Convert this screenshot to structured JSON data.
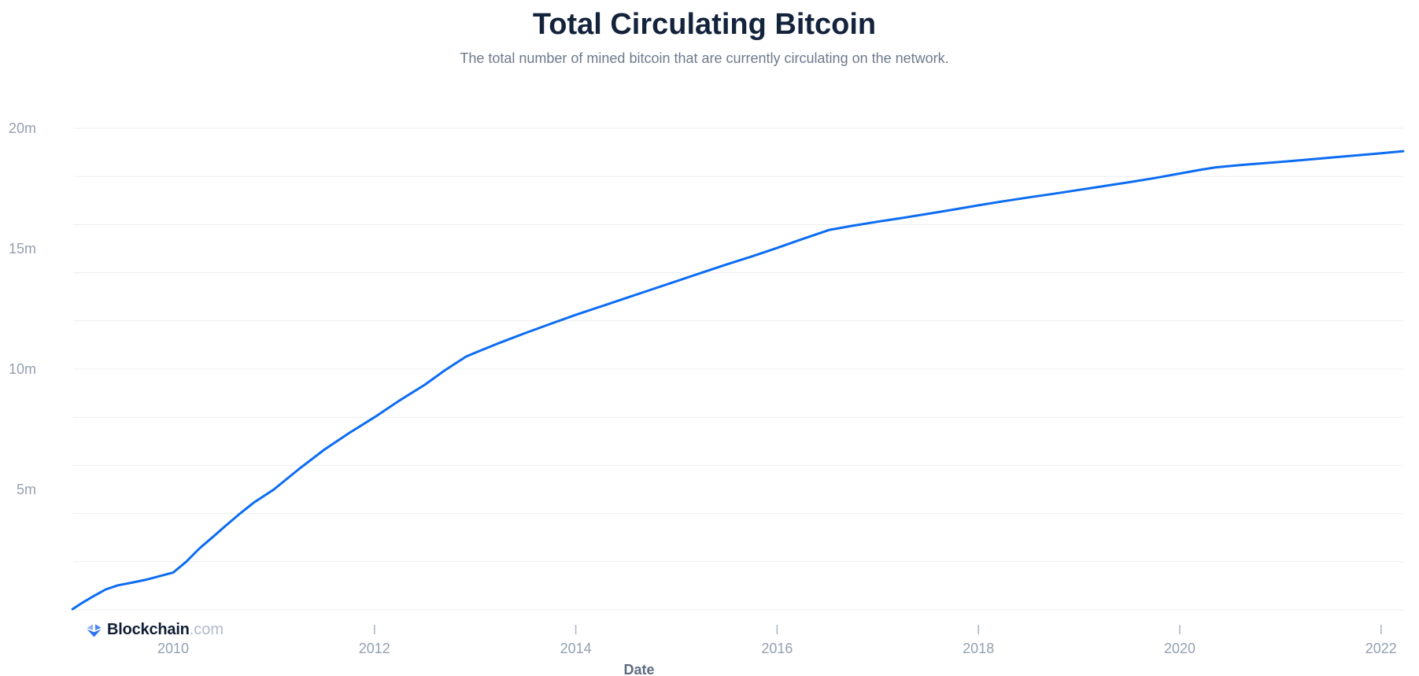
{
  "header": {
    "title": "Total Circulating Bitcoin",
    "subtitle": "The total number of mined bitcoin that are currently circulating on the network."
  },
  "footer": {
    "brand": "Blockchain",
    "domain": ".com"
  },
  "colors": {
    "line": "#0c6cf2",
    "grid": "#ebedf1",
    "axis_label": "#95a0b0",
    "axis_title": "#5f6b80",
    "tick": "#aab3c1",
    "title": "#14233c",
    "subtitle": "#6e7a8c",
    "logo_brand": "#101d33",
    "logo_domain": "#b2bac9",
    "logo_icon": [
      "#8fb0f9",
      "#4a85f6",
      "#2d72f5"
    ]
  },
  "chart_data": {
    "type": "line",
    "title": "Total Circulating Bitcoin",
    "subtitle": "The total number of mined bitcoin that are currently circulating on the network.",
    "xlabel": "Date",
    "ylabel": "",
    "unit": "millions of BTC",
    "x_range": [
      2009.0,
      2022.25
    ],
    "y_range": [
      0,
      20
    ],
    "grid": "horizontal-only",
    "legend": "none",
    "yaxis": {
      "gridline_values": [
        0,
        2,
        4,
        6,
        8,
        10,
        12,
        14,
        16,
        18,
        20
      ],
      "labels": [
        {
          "value": 20,
          "label": "20m"
        },
        {
          "value": 15,
          "label": "15m"
        },
        {
          "value": 10,
          "label": "10m"
        },
        {
          "value": 5,
          "label": "5m"
        }
      ]
    },
    "xaxis": {
      "ticks": [
        {
          "year": 2010,
          "label": "2010",
          "tick": false
        },
        {
          "year": 2012,
          "label": "2012",
          "tick": true
        },
        {
          "year": 2014,
          "label": "2014",
          "tick": true
        },
        {
          "year": 2016,
          "label": "2016",
          "tick": true
        },
        {
          "year": 2018,
          "label": "2018",
          "tick": true
        },
        {
          "year": 2020,
          "label": "2020",
          "tick": true
        },
        {
          "year": 2022,
          "label": "2022",
          "tick": true
        }
      ]
    },
    "series": [
      {
        "name": "Total Circulating Bitcoin",
        "color": "#0c6cf2",
        "points": [
          [
            2009.0,
            0.03
          ],
          [
            2009.1,
            0.3
          ],
          [
            2009.2,
            0.55
          ],
          [
            2009.33,
            0.85
          ],
          [
            2009.45,
            1.02
          ],
          [
            2009.6,
            1.14
          ],
          [
            2009.75,
            1.27
          ],
          [
            2009.9,
            1.44
          ],
          [
            2010.0,
            1.55
          ],
          [
            2010.13,
            2.0
          ],
          [
            2010.26,
            2.55
          ],
          [
            2010.4,
            3.05
          ],
          [
            2010.51,
            3.45
          ],
          [
            2010.65,
            3.95
          ],
          [
            2010.8,
            4.45
          ],
          [
            2011.0,
            5.0
          ],
          [
            2011.25,
            5.85
          ],
          [
            2011.5,
            6.65
          ],
          [
            2011.75,
            7.35
          ],
          [
            2012.0,
            8.0
          ],
          [
            2012.25,
            8.7
          ],
          [
            2012.5,
            9.35
          ],
          [
            2012.7,
            9.95
          ],
          [
            2012.91,
            10.52
          ],
          [
            2013.0,
            10.68
          ],
          [
            2013.25,
            11.1
          ],
          [
            2013.5,
            11.5
          ],
          [
            2013.75,
            11.88
          ],
          [
            2014.0,
            12.25
          ],
          [
            2014.25,
            12.6
          ],
          [
            2014.5,
            12.95
          ],
          [
            2014.75,
            13.3
          ],
          [
            2015.0,
            13.65
          ],
          [
            2015.25,
            14.0
          ],
          [
            2015.5,
            14.35
          ],
          [
            2015.75,
            14.68
          ],
          [
            2016.0,
            15.03
          ],
          [
            2016.25,
            15.4
          ],
          [
            2016.52,
            15.78
          ],
          [
            2016.75,
            15.95
          ],
          [
            2017.0,
            16.12
          ],
          [
            2017.25,
            16.28
          ],
          [
            2017.5,
            16.45
          ],
          [
            2017.75,
            16.62
          ],
          [
            2018.0,
            16.8
          ],
          [
            2018.25,
            16.97
          ],
          [
            2018.5,
            17.13
          ],
          [
            2018.75,
            17.28
          ],
          [
            2019.0,
            17.44
          ],
          [
            2019.25,
            17.6
          ],
          [
            2019.5,
            17.76
          ],
          [
            2019.75,
            17.93
          ],
          [
            2020.0,
            18.12
          ],
          [
            2020.2,
            18.27
          ],
          [
            2020.36,
            18.38
          ],
          [
            2020.6,
            18.47
          ],
          [
            2021.0,
            18.6
          ],
          [
            2021.5,
            18.78
          ],
          [
            2022.0,
            18.96
          ],
          [
            2022.22,
            19.05
          ]
        ]
      }
    ]
  }
}
